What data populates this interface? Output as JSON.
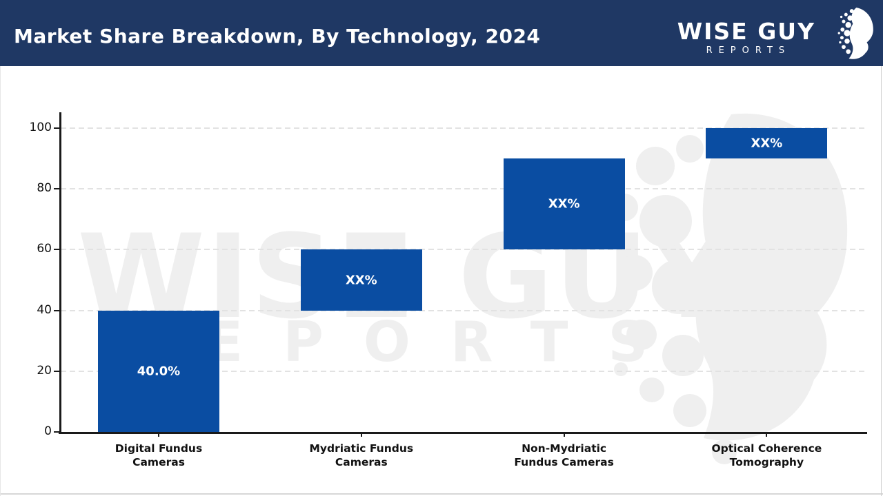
{
  "header": {
    "title": "Market Share Breakdown, By Technology, 2024",
    "logo": {
      "line1": "WISE GUY",
      "line2": "REPORTS"
    }
  },
  "watermark": {
    "line1": "WISE GUY",
    "line2": "REPORTS"
  },
  "colors": {
    "header_bg": "#1f3864",
    "bar": "#0a4da2",
    "bar_label": "#ffffff",
    "gridline": "#e2e2e2",
    "axis": "#1a1a1a",
    "watermark": "#efefef"
  },
  "chart_data": {
    "type": "bar",
    "subtype": "waterfall",
    "title": "Market Share Breakdown, By Technology, 2024",
    "categories": [
      [
        "Digital Fundus",
        "Cameras"
      ],
      [
        "Mydriatic Fundus",
        "Cameras"
      ],
      [
        "Non-Mydriatic",
        "Fundus Cameras"
      ],
      [
        "Optical Coherence",
        "Tomography"
      ]
    ],
    "series": [
      {
        "name": "Digital Fundus Cameras",
        "start": 0,
        "end": 40,
        "label": "40.0%"
      },
      {
        "name": "Mydriatic Fundus Cameras",
        "start": 40,
        "end": 60,
        "label": "XX%"
      },
      {
        "name": "Non-Mydriatic Fundus Cameras",
        "start": 60,
        "end": 90,
        "label": "XX%"
      },
      {
        "name": "Optical Coherence Tomography",
        "start": 90,
        "end": 100,
        "label": "XX%"
      }
    ],
    "ylim": [
      0,
      100
    ],
    "yticks": [
      0,
      20,
      40,
      60,
      80,
      100
    ],
    "xlabel": "",
    "ylabel": "",
    "grid": "horizontal-dashed",
    "legend": "none",
    "bar_color": "#0a4da2",
    "label_color": "#ffffff"
  }
}
